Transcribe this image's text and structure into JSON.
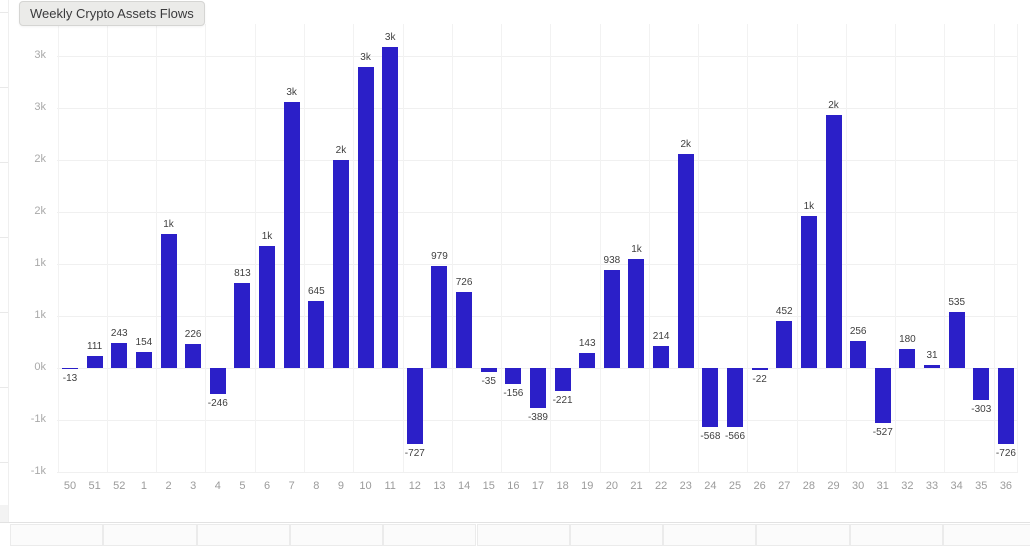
{
  "title_tooltip": "Weekly Crypto Assets Flows",
  "colors": {
    "bar": "#2b1fc8",
    "h_grid": "#f0f0f0",
    "v_grid": "#f2f2f2",
    "x_axis_label": "#9b9b9b",
    "y_axis_label": "#a9a9a9",
    "value_label": "#3f3f3f",
    "tooltip_bg": "#ebebe9",
    "tooltip_border": "#d5d5d3",
    "tooltip_text": "#3a3a3c"
  },
  "chart_data": {
    "type": "bar",
    "title": "Weekly Crypto Assets Flows",
    "xlabel": "",
    "ylabel": "",
    "legend_position": "none",
    "grid": true,
    "ylim": [
      -1450,
      3250
    ],
    "categories": [
      "50",
      "51",
      "52",
      "1",
      "2",
      "3",
      "4",
      "5",
      "6",
      "7",
      "8",
      "9",
      "10",
      "11",
      "12",
      "13",
      "14",
      "15",
      "16",
      "17",
      "18",
      "19",
      "20",
      "21",
      "22",
      "23",
      "24",
      "25",
      "26",
      "27",
      "28",
      "29",
      "30",
      "31",
      "32",
      "33",
      "34",
      "35",
      "36"
    ],
    "values": [
      -13,
      111,
      243,
      154,
      1290,
      226,
      -246,
      813,
      1170,
      2560,
      645,
      2000,
      2890,
      3090,
      -727,
      979,
      726,
      -35,
      -156,
      -389,
      -221,
      143,
      938,
      1050,
      214,
      2060,
      -568,
      -566,
      -22,
      452,
      1460,
      2430,
      256,
      -527,
      180,
      31,
      535,
      -303,
      -726
    ],
    "bar_labels": [
      "-13",
      "111",
      "243",
      "154",
      "1k",
      "226",
      "-246",
      "813",
      "1k",
      "3k",
      "645",
      "2k",
      "3k",
      "3k",
      "-727",
      "979",
      "726",
      "-35",
      "-156",
      "-389",
      "-221",
      "143",
      "938",
      "1k",
      "214",
      "2k",
      "-568",
      "-566",
      "-22",
      "452",
      "1k",
      "2k",
      "256",
      "-527",
      "180",
      "31",
      "535",
      "-303",
      "-726"
    ],
    "y_axis": {
      "tick_values": [
        3000,
        2500,
        2000,
        1500,
        1000,
        500,
        0,
        -500,
        -1000
      ],
      "tick_labels": [
        "3k",
        "3k",
        "2k",
        "2k",
        "1k",
        "1k",
        "0k",
        "-1k",
        "-1k"
      ]
    }
  },
  "bottom_row": {
    "cell_count": 11
  }
}
